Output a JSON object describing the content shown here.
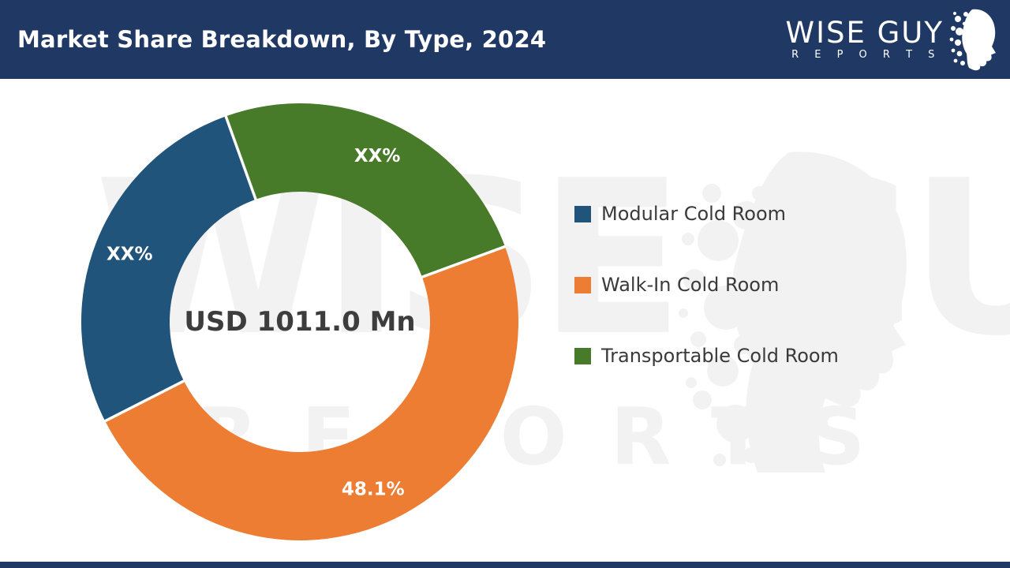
{
  "header": {
    "title": "Market Share Breakdown, By Type, 2024",
    "bg_color": "#1f3864",
    "logo": {
      "line1": "WISE GUY",
      "line2": "R E P O R T S"
    }
  },
  "watermark": {
    "line1": "WISE GUY",
    "line2": "REPORTS"
  },
  "chart_data": {
    "type": "pie",
    "donut": true,
    "title": "Market Share Breakdown, By Type, 2024",
    "center_label": "USD 1011.0 Mn",
    "start_angle_deg": 243,
    "legend_position": "right",
    "segments": [
      {
        "name": "Modular Cold Room",
        "value": 27.0,
        "label": "XX%",
        "color": "#20547a"
      },
      {
        "name": "Transportable Cold Room",
        "value": 24.9,
        "label": "XX%",
        "color": "#477a29"
      },
      {
        "name": "Walk-In Cold Room",
        "value": 48.1,
        "label": "48.1%",
        "color": "#ec7d33"
      }
    ]
  },
  "legend": {
    "items": [
      {
        "label": "Modular Cold Room",
        "color": "#20547a"
      },
      {
        "label": "Walk-In Cold Room",
        "color": "#ec7d33"
      },
      {
        "label": "Transportable Cold Room",
        "color": "#477a29"
      }
    ]
  },
  "footer": {
    "bg_color": "#1f3864"
  }
}
